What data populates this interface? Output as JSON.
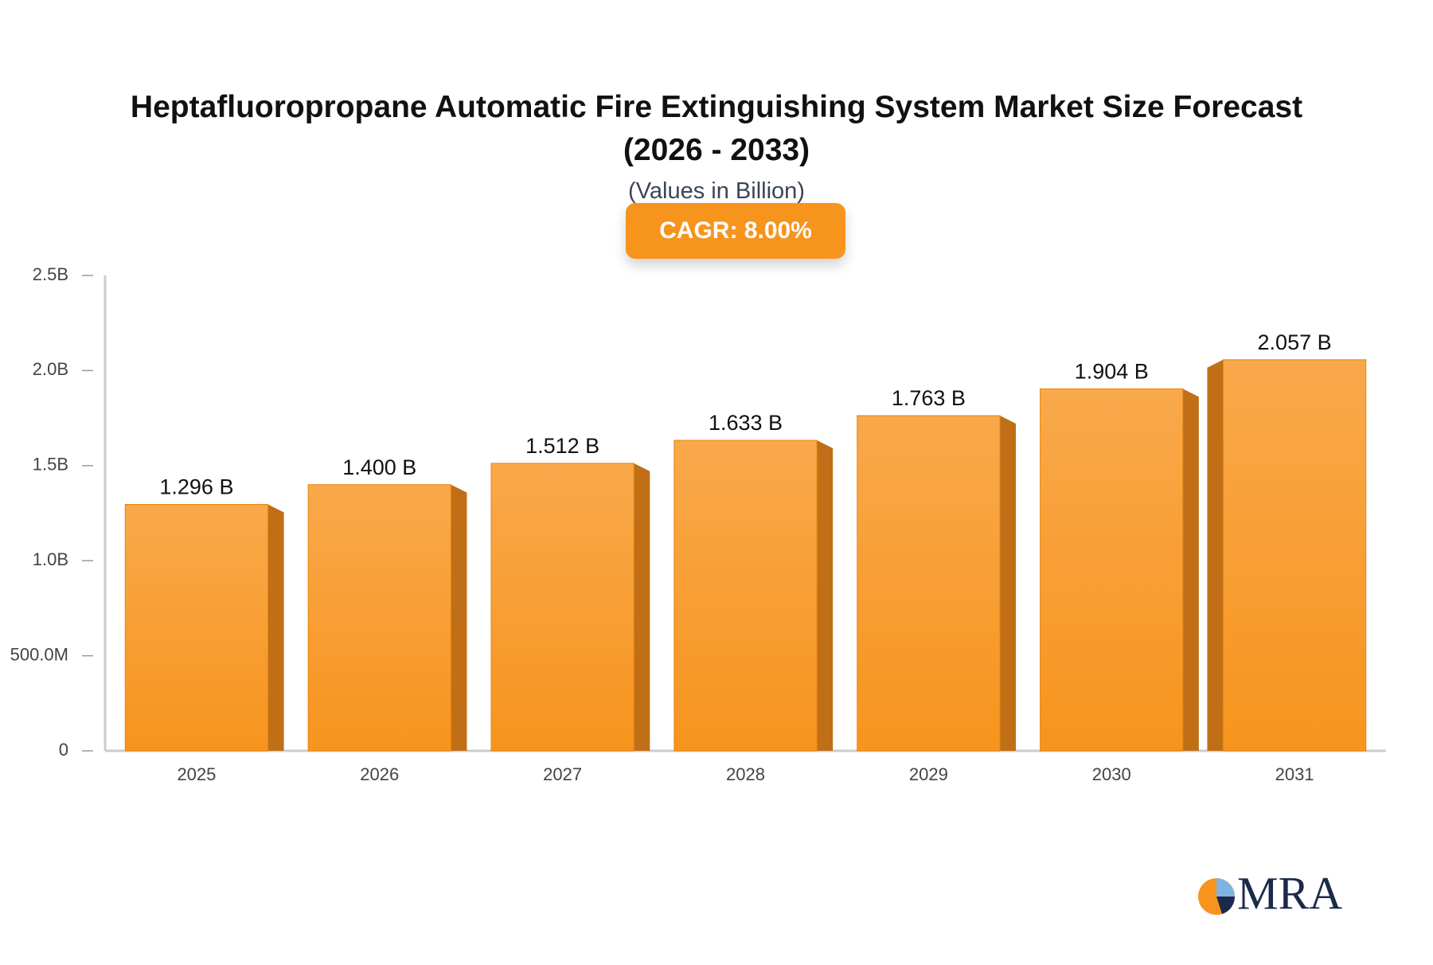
{
  "chart_data": {
    "type": "bar",
    "title": "Heptafluoropropane Automatic Fire Extinguishing System Market Size Forecast (2026 - 2033)",
    "subtitle": "(Values in Billion)",
    "annotation": "CAGR: 8.00%",
    "categories": [
      "2025",
      "2026",
      "2027",
      "2028",
      "2029",
      "2030",
      "2031"
    ],
    "values": [
      1.296,
      1.4,
      1.512,
      1.633,
      1.763,
      1.904,
      2.057
    ],
    "value_labels": [
      "1.296 B",
      "1.400 B",
      "1.512 B",
      "1.633 B",
      "1.763 B",
      "1.904 B",
      "2.057 B"
    ],
    "color": "#f7941d",
    "ylim": [
      0,
      2.5
    ],
    "yticks": [
      0,
      {
        "value": 0.5,
        "label": "500.0M"
      },
      {
        "value": 1,
        "label": "1.0B"
      },
      {
        "value": 1.5,
        "label": "1.5B"
      },
      {
        "value": 2,
        "label": "2.0B"
      },
      {
        "value": 2.5,
        "label": "2.5B"
      }
    ],
    "grid": false
  },
  "logo": "MRA"
}
